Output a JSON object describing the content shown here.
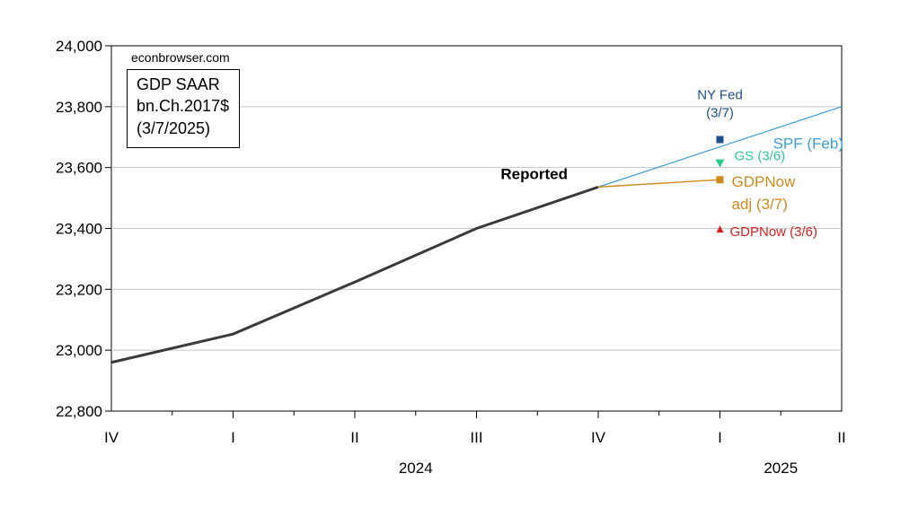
{
  "chart_data": {
    "type": "line",
    "source_note": "econbrowser.com",
    "legend_box": [
      "GDP SAAR",
      "bn.Ch.2017$",
      "(3/7/2025)"
    ],
    "x_ticks": [
      "IV",
      "I",
      "II",
      "III",
      "IV",
      "I",
      "II"
    ],
    "year_labels": [
      {
        "label": "2024",
        "tick_index": 2.5
      },
      {
        "label": "2025",
        "tick_index": 5.5
      }
    ],
    "ylim": [
      22800,
      24000
    ],
    "y_ticks": [
      22800,
      23000,
      23200,
      23400,
      23600,
      23800,
      24000
    ],
    "y_tick_labels": [
      "22,800",
      "23,000",
      "23,200",
      "23,400",
      "23,600",
      "23,800",
      "24,000"
    ],
    "grid": true,
    "reported": {
      "label": "Reported",
      "color": "#3a3a3a",
      "points": [
        {
          "x": "2023 IV",
          "y": 22960
        },
        {
          "x": "2024 I",
          "y": 23053
        },
        {
          "x": "2024 II",
          "y": 23224
        },
        {
          "x": "2024 III",
          "y": 23400
        },
        {
          "x": "2024 IV",
          "y": 23536
        }
      ]
    },
    "spf": {
      "label": "SPF (Feb)",
      "color": "#3b9fd6",
      "points": [
        {
          "x": "2024 IV",
          "y": 23536
        },
        {
          "x": "2025 II",
          "y": 23800
        }
      ]
    },
    "gdpnow_adj_line": {
      "color": "#d08a1c",
      "points": [
        {
          "x": "2024 IV",
          "y": 23536
        },
        {
          "x": "2025 I",
          "y": 23560
        }
      ]
    },
    "nowcasts": [
      {
        "label_lines": [
          "NY Fed",
          "(3/7)"
        ],
        "x": "2025 I",
        "y": 23692,
        "marker": "square",
        "color": "#1f4e8c"
      },
      {
        "label_lines": [
          "GS (3/6)"
        ],
        "x": "2025 I",
        "y": 23615,
        "marker": "triangle-down",
        "color": "#2ecc8a"
      },
      {
        "label_lines": [
          "GDPNow",
          "adj (3/7)"
        ],
        "x": "2025 I",
        "y": 23560,
        "marker": "square",
        "color": "#d08a1c"
      },
      {
        "label_lines": [
          "GDPNow (3/6)"
        ],
        "x": "2025 I",
        "y": 23398,
        "marker": "triangle-up",
        "color": "#d62020"
      }
    ]
  }
}
